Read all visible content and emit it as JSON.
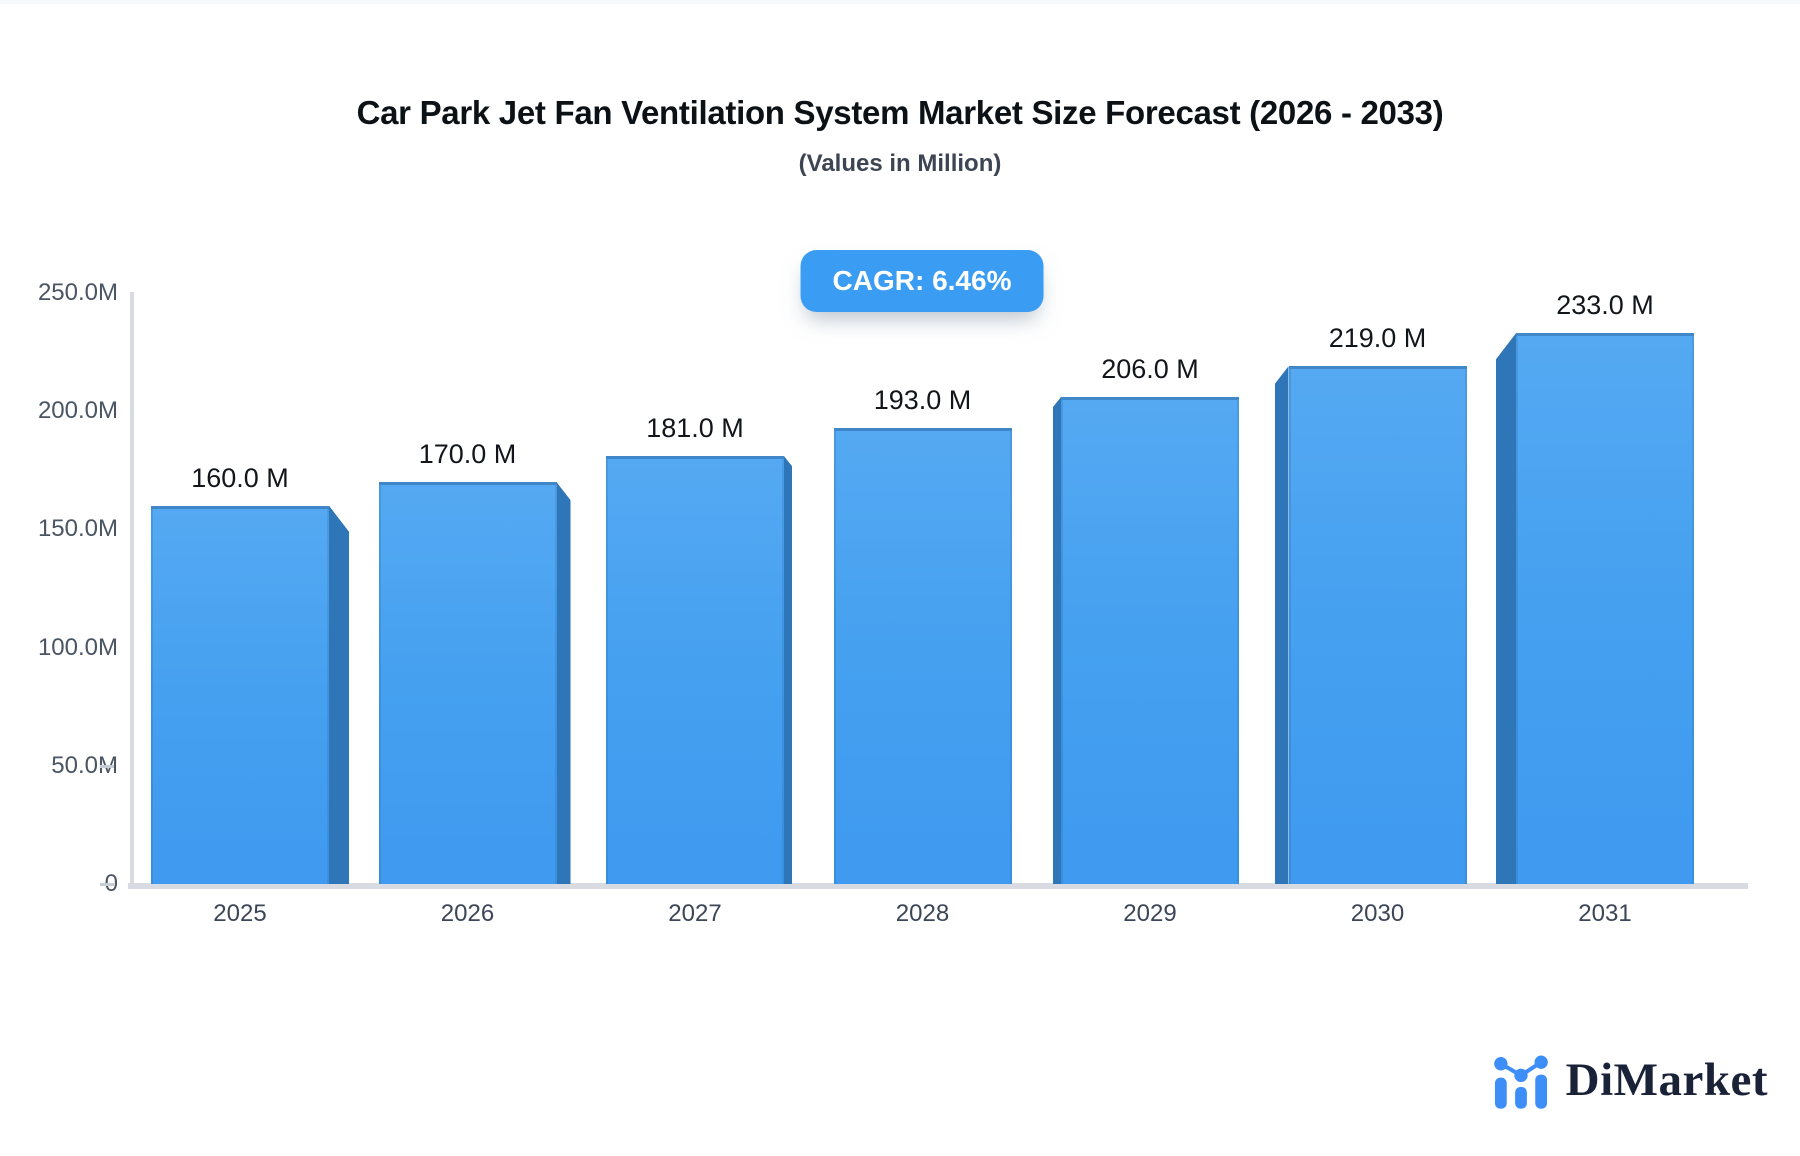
{
  "header": {
    "title": "Car Park Jet Fan Ventilation System Market Size Forecast (2026 - 2033)",
    "subtitle": "(Values in Million)",
    "cagr_badge": "CAGR: 6.46%"
  },
  "chart_data": {
    "type": "bar",
    "title": "Car Park Jet Fan Ventilation System Market Size Forecast (2026 - 2033)",
    "subtitle": "(Values in Million)",
    "categories": [
      "2025",
      "2026",
      "2027",
      "2028",
      "2029",
      "2030",
      "2031"
    ],
    "values": [
      160.0,
      170.0,
      181.0,
      193.0,
      206.0,
      219.0,
      233.0
    ],
    "value_labels": [
      "160.0 M",
      "170.0 M",
      "181.0 M",
      "193.0 M",
      "206.0 M",
      "219.0 M",
      "233.0 M"
    ],
    "unit": "Million",
    "cagr": "6.46%",
    "xlabel": "",
    "ylabel": "",
    "ylim": [
      0,
      250
    ],
    "y_ticks": [
      250,
      200,
      150,
      100,
      50,
      0
    ],
    "y_tick_labels": [
      "250.0M",
      "200.0M",
      "150.0M",
      "100.0M",
      "50.0M",
      "0"
    ],
    "grid": false,
    "legend": null,
    "style": "3d-perspective-blue-bars"
  },
  "colors": {
    "bar_face": "#45a0f0",
    "bar_side": "#2f76b8",
    "badge_bg": "#3b9cf4",
    "axis": "#d8dce2",
    "logo_accent": "#3d8ef7",
    "logo_text": "#1a2238"
  },
  "logo": {
    "text": "DiMarket"
  }
}
